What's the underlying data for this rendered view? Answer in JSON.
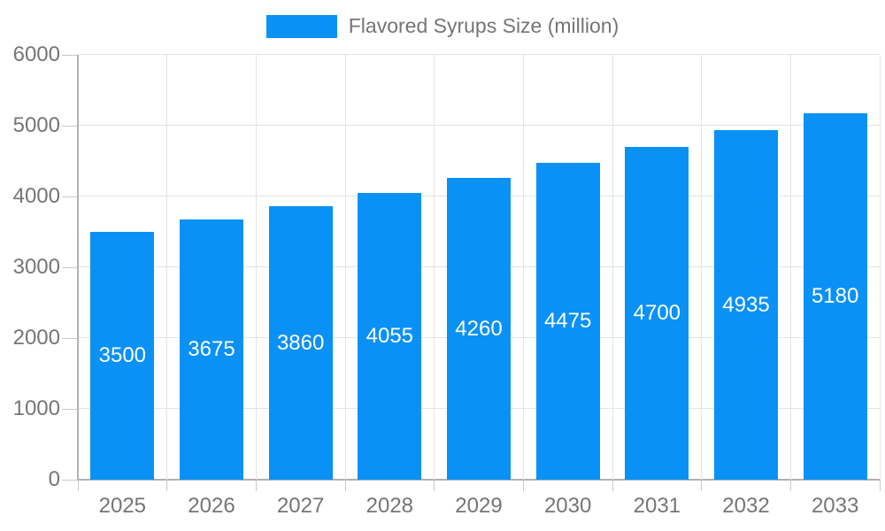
{
  "chart_data": {
    "type": "bar",
    "title": "",
    "legend_label": "Flavored Syrups Size (million)",
    "legend_position": "top",
    "categories": [
      "2025",
      "2026",
      "2027",
      "2028",
      "2029",
      "2030",
      "2031",
      "2032",
      "2033"
    ],
    "values": [
      3500,
      3675,
      3860,
      4055,
      4260,
      4475,
      4700,
      4935,
      5180
    ],
    "xlabel": "",
    "ylabel": "",
    "ylim": [
      0,
      6000
    ],
    "yticks": [
      0,
      1000,
      2000,
      3000,
      4000,
      5000,
      6000
    ],
    "grid": true,
    "bar_labels_inside": true,
    "colors": {
      "bar": "#0a91f5",
      "barlabel": "#ffffff",
      "grid": "#e4e4e4",
      "axis": "#b1b1b1",
      "tick": "#c9c9c9",
      "text": "#757575",
      "bg": "#ffffff"
    }
  }
}
